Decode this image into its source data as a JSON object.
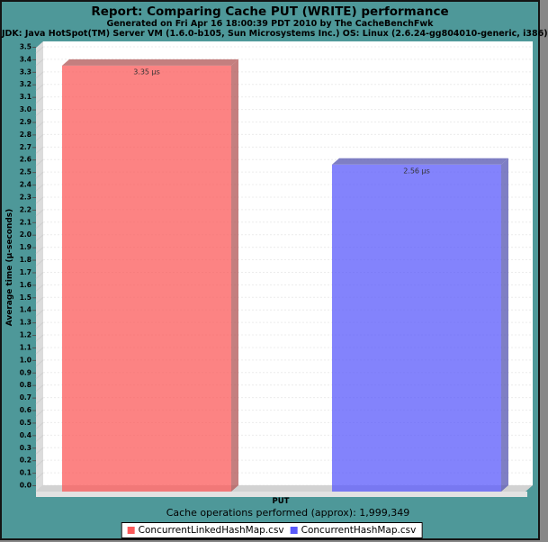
{
  "chart_data": {
    "type": "bar",
    "effect": "3d",
    "title": "Report: Comparing Cache PUT (WRITE) performance",
    "subtitle1": "Generated on Fri Apr 16 18:00:39 PDT 2010 by The CacheBenchFwk",
    "subtitle2": "JDK: Java HotSpot(TM) Server VM (1.6.0-b105, Sun Microsystems Inc.) OS: Linux (2.6.24-gg804010-generic, i386)",
    "categories": [
      "PUT"
    ],
    "series": [
      {
        "name": "ConcurrentLinkedHashMap.csv",
        "values": [
          3.35
        ],
        "value_labels": [
          "3.35 µs"
        ],
        "color": "#fb5a5a",
        "shade": "#b05454"
      },
      {
        "name": "ConcurrentHashMap.csv",
        "values": [
          2.56
        ],
        "value_labels": [
          "2.56 µs"
        ],
        "color": "#5a5afb",
        "shade": "#5454b0"
      }
    ],
    "ylabel": "Average time (µ-seconds)",
    "xlabel": "",
    "ylim": [
      0.0,
      3.5
    ],
    "ytick_step": 0.1,
    "grid": true,
    "legend_position": "bottom",
    "caption": "Cache operations performed (approx): 1,999,349"
  },
  "colors": {
    "background": "#4e9899",
    "plot_background": "#ffffff",
    "wall": "#dcdcdc",
    "floor": "#d2d2d2",
    "floor_edge": "#e2e2e2",
    "gridline": "#ececec",
    "wall_grid": "#cfcfcf",
    "tick": "#555555",
    "bar_label": "#333333"
  }
}
